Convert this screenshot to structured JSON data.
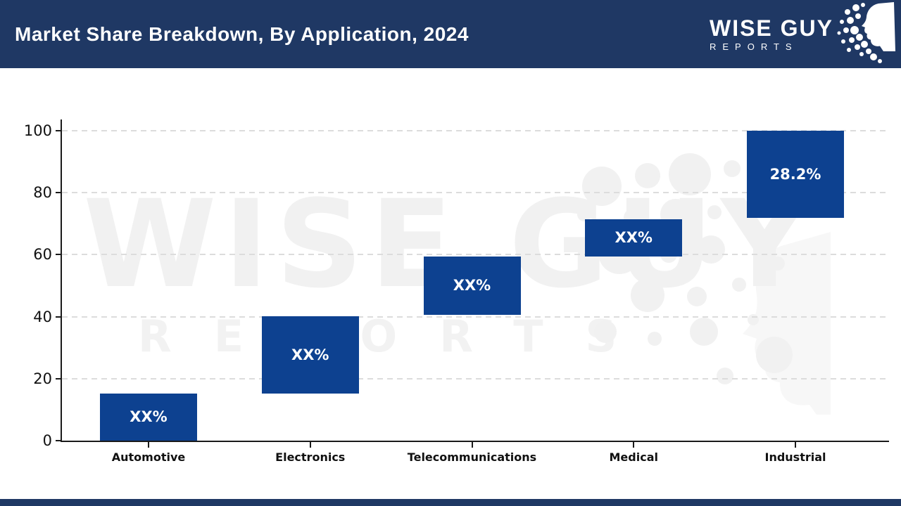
{
  "header": {
    "title": "Market Share Breakdown, By Application, 2024",
    "logo": {
      "line1": "WISE GUY",
      "line2": "REPORTS"
    },
    "bg_color": "#1f3864"
  },
  "watermark": {
    "line1": "WISE GUY",
    "line2": "REPORTS"
  },
  "chart_data": {
    "type": "bar",
    "subtype": "waterfall",
    "title": "Market Share Breakdown, By Application, 2024",
    "categories": [
      "Automotive",
      "Electronics",
      "Telecommunications",
      "Medical",
      "Industrial"
    ],
    "segments": [
      {
        "category": "Automotive",
        "start": 0,
        "end": 15.2,
        "label": "XX%"
      },
      {
        "category": "Electronics",
        "start": 15.2,
        "end": 40.2,
        "label": "XX%"
      },
      {
        "category": "Telecommunications",
        "start": 40.6,
        "end": 59.4,
        "label": "XX%"
      },
      {
        "category": "Medical",
        "start": 59.4,
        "end": 71.5,
        "label": "XX%"
      },
      {
        "category": "Industrial",
        "start": 71.8,
        "end": 100,
        "label": "28.2%"
      }
    ],
    "ylim": [
      0,
      100
    ],
    "yticks": [
      0,
      20,
      40,
      60,
      80,
      100
    ],
    "grid": "horizontal-dashed",
    "grid_color": "#dcdcdc",
    "bar_color": "#0d4190",
    "bar_label_color": "#ffffff",
    "axis_color": "#1a1a1a",
    "legend": "none"
  },
  "footer": {
    "bar_color": "#1f3864"
  }
}
